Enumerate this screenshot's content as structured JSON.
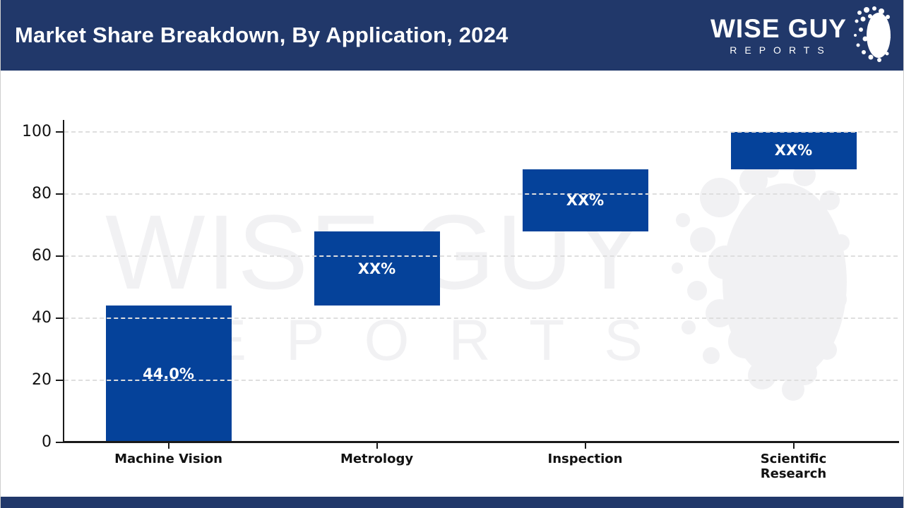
{
  "header": {
    "title": "Market Share Breakdown, By Application, 2024",
    "logo_line1": "WISE GUY",
    "logo_line2": "REPORTS"
  },
  "watermark": {
    "line1": "WISE GUY",
    "line2": "REPORTS"
  },
  "chart_data": {
    "type": "bar",
    "subtype": "waterfall",
    "title": "Market Share Breakdown, By Application, 2024",
    "categories": [
      "Machine Vision",
      "Metrology",
      "Inspection",
      "Scientific\nResearch"
    ],
    "segments": [
      {
        "category": "Machine Vision",
        "start": 0,
        "end": 44,
        "value": 44,
        "label": "44.0%"
      },
      {
        "category": "Metrology",
        "start": 44,
        "end": 68,
        "value": 24,
        "label": "XX%"
      },
      {
        "category": "Inspection",
        "start": 68,
        "end": 88,
        "value": 20,
        "label": "XX%"
      },
      {
        "category": "Scientific Research",
        "start": 88,
        "end": 100,
        "value": 12,
        "label": "XX%"
      }
    ],
    "xlabel": "",
    "ylabel": "",
    "ylim": [
      0,
      100
    ],
    "yticks": [
      0,
      20,
      40,
      60,
      80,
      100
    ],
    "grid": "horizontal-dashed, drawn above bars",
    "legend": "none"
  },
  "colors": {
    "header_bg": "#21386a",
    "footer_bg": "#21386a",
    "bar": "#05429a",
    "bar_label": "#ffffff",
    "gridline": "#dedede",
    "axis": "#1a1a1a",
    "watermark": "#f1f1f3",
    "canvas_bg": "#ffffff"
  },
  "icons": {
    "logo_head": "wiseguy-dotted-head-logo",
    "watermark_head": "wiseguy-dotted-head-watermark"
  }
}
